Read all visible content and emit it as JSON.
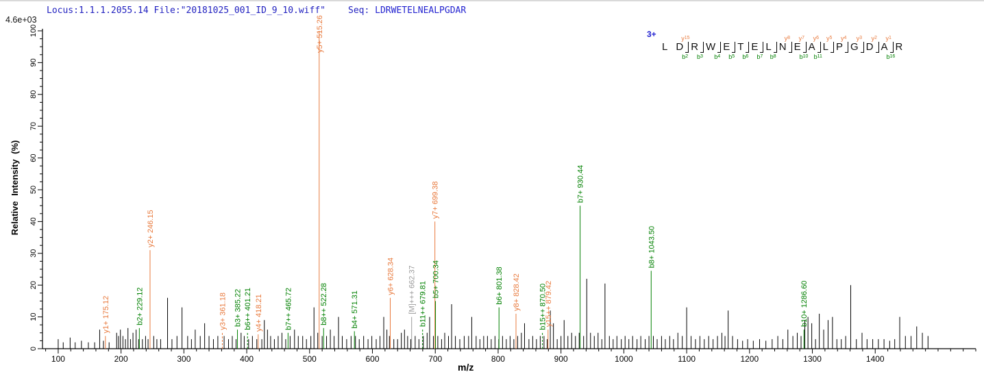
{
  "header": {
    "locus_file": "Locus:1.1.1.2055.14 File:\"20181025_001_ID_9_10.wiff\"",
    "seq_label": "Seq: ",
    "seq_value": "LDRWETELNEALPGDAR",
    "max_intensity": "4.6e+03"
  },
  "peptide": {
    "charge": "3+",
    "residues": [
      "L",
      "D",
      "R",
      "W",
      "E",
      "T",
      "E",
      "L",
      "N",
      "E",
      "A",
      "L",
      "P",
      "G",
      "D",
      "A",
      "R"
    ],
    "gaps": [
      {
        "after": 2,
        "y": "y15",
        "b": "b2"
      },
      {
        "after": 3,
        "b": "b3"
      },
      {
        "after": 4,
        "b": "b4"
      },
      {
        "after": 5,
        "b": "b5"
      },
      {
        "after": 6,
        "b": "b6"
      },
      {
        "after": 7,
        "b": "b7"
      },
      {
        "after": 8,
        "b": "b8"
      },
      {
        "after": 9,
        "y": "y8"
      },
      {
        "after": 10,
        "y": "y7",
        "b": "b10"
      },
      {
        "after": 11,
        "y": "y6",
        "b": "b11"
      },
      {
        "after": 12,
        "y": "y5"
      },
      {
        "after": 13,
        "y": "y4"
      },
      {
        "after": 14,
        "y": "y3"
      },
      {
        "after": 15,
        "y": "y2"
      },
      {
        "after": 16,
        "y": "y1",
        "b": "b16"
      }
    ]
  },
  "colors": {
    "y_ion": "#e8793c",
    "b_ion": "#008000",
    "precursor": "#999999",
    "peak": "#000000",
    "header_blue": "#2222c0"
  },
  "chart_data": {
    "type": "bar",
    "subtype": "ms2-fragmentation-spectrum",
    "xlabel": "m/z",
    "ylabel": "Relative  Intensity (%)",
    "y_axis_absolute_max": "4.6e+03",
    "x_range": [
      75,
      1560
    ],
    "y_range": [
      0,
      100
    ],
    "x_ticks": [
      100,
      200,
      300,
      400,
      500,
      600,
      700,
      800,
      900,
      1000,
      1100,
      1200,
      1300,
      1400
    ],
    "x_minor_tick_step": 20,
    "y_tick_step": 10,
    "y_minor_tick_step": 2.5,
    "grid": false,
    "labeled_peaks": [
      {
        "ion": "y1+",
        "mz": 175.12,
        "pct": 4,
        "type": "y"
      },
      {
        "ion": "b2+",
        "mz": 229.12,
        "pct": 6.5,
        "type": "b"
      },
      {
        "ion": "y2+",
        "mz": 246.15,
        "pct": 31,
        "type": "y"
      },
      {
        "ion": "y3+",
        "mz": 361.18,
        "pct": 5,
        "type": "y",
        "dashed": true
      },
      {
        "ion": "b3+",
        "mz": 385.22,
        "pct": 6,
        "type": "b"
      },
      {
        "ion": "b6++",
        "mz": 401.21,
        "pct": 5,
        "type": "b",
        "dashed": true
      },
      {
        "ion": "y4+",
        "mz": 418.21,
        "pct": 4.5,
        "type": "y"
      },
      {
        "ion": "b7++",
        "mz": 465.72,
        "pct": 5,
        "type": "b"
      },
      {
        "ion": "y5+",
        "mz": 515.26,
        "pct": 100,
        "type": "y",
        "label_dy": 36
      },
      {
        "ion": "b8++",
        "mz": 522.28,
        "pct": 6.5,
        "type": "b"
      },
      {
        "ion": "b4+",
        "mz": 571.31,
        "pct": 5.5,
        "type": "b"
      },
      {
        "ion": "y6+",
        "mz": 628.34,
        "pct": 16,
        "type": "y"
      },
      {
        "ion": "[M]+++",
        "mz": 662.37,
        "pct": 10,
        "type": "precursor"
      },
      {
        "ion": "b11++",
        "mz": 679.81,
        "pct": 6,
        "type": "b",
        "dashed": true
      },
      {
        "ion": "y7+",
        "mz": 699.38,
        "pct": 40,
        "type": "y"
      },
      {
        "ion": "b5+",
        "mz": 700.34,
        "pct": 15,
        "type": "b"
      },
      {
        "ion": "b6+",
        "mz": 801.38,
        "pct": 13,
        "type": "b"
      },
      {
        "ion": "y8+",
        "mz": 828.42,
        "pct": 11,
        "type": "y"
      },
      {
        "ion": "b15++",
        "mz": 870.5,
        "pct": 5,
        "type": "b",
        "dashed": true
      },
      {
        "ion": "y15++",
        "mz": 879.42,
        "pct": 6,
        "type": "y"
      },
      {
        "ion": "b7+",
        "mz": 930.44,
        "pct": 45,
        "type": "b"
      },
      {
        "ion": "b8+",
        "mz": 1043.5,
        "pct": 24.5,
        "type": "b"
      },
      {
        "ion": "b10+",
        "mz": 1286.6,
        "pct": 6,
        "type": "b"
      }
    ],
    "unlabeled_peaks": [
      [
        100,
        3
      ],
      [
        108,
        2
      ],
      [
        119,
        3.5
      ],
      [
        127,
        2
      ],
      [
        137,
        2.5
      ],
      [
        148,
        2
      ],
      [
        158,
        2
      ],
      [
        166,
        6
      ],
      [
        172,
        2.5
      ],
      [
        181,
        2
      ],
      [
        193,
        5
      ],
      [
        196,
        4
      ],
      [
        199,
        6
      ],
      [
        203,
        4
      ],
      [
        207,
        3
      ],
      [
        211,
        6.5
      ],
      [
        215,
        3
      ],
      [
        219,
        5
      ],
      [
        224,
        6
      ],
      [
        228,
        3
      ],
      [
        234,
        3
      ],
      [
        239,
        4
      ],
      [
        243,
        3
      ],
      [
        252,
        4
      ],
      [
        257,
        3
      ],
      [
        263,
        3
      ],
      [
        274,
        16
      ],
      [
        281,
        3
      ],
      [
        289,
        4
      ],
      [
        297,
        13
      ],
      [
        306,
        4
      ],
      [
        312,
        3
      ],
      [
        318,
        6
      ],
      [
        326,
        4
      ],
      [
        333,
        8
      ],
      [
        340,
        4
      ],
      [
        347,
        3
      ],
      [
        354,
        4
      ],
      [
        364,
        4
      ],
      [
        371,
        3
      ],
      [
        377,
        4
      ],
      [
        383,
        3
      ],
      [
        391,
        5
      ],
      [
        396,
        4
      ],
      [
        403,
        3
      ],
      [
        409,
        4
      ],
      [
        416,
        3
      ],
      [
        424,
        3
      ],
      [
        428,
        9
      ],
      [
        433,
        6
      ],
      [
        438,
        4
      ],
      [
        444,
        3
      ],
      [
        450,
        4
      ],
      [
        456,
        5
      ],
      [
        462,
        3
      ],
      [
        469,
        4
      ],
      [
        476,
        6
      ],
      [
        482,
        4
      ],
      [
        489,
        4
      ],
      [
        495,
        3
      ],
      [
        502,
        4
      ],
      [
        507,
        13
      ],
      [
        513,
        5
      ],
      [
        520,
        4
      ],
      [
        527,
        4
      ],
      [
        533,
        6
      ],
      [
        539,
        4
      ],
      [
        546,
        10
      ],
      [
        552,
        4
      ],
      [
        559,
        3
      ],
      [
        566,
        4
      ],
      [
        573,
        4
      ],
      [
        579,
        3
      ],
      [
        586,
        4
      ],
      [
        593,
        3
      ],
      [
        599,
        4
      ],
      [
        606,
        3
      ],
      [
        612,
        4
      ],
      [
        618,
        10
      ],
      [
        623,
        6
      ],
      [
        627,
        4
      ],
      [
        634,
        3
      ],
      [
        640,
        3
      ],
      [
        646,
        5
      ],
      [
        651,
        6
      ],
      [
        656,
        4
      ],
      [
        661,
        3
      ],
      [
        668,
        4
      ],
      [
        674,
        3
      ],
      [
        681,
        4
      ],
      [
        687,
        5
      ],
      [
        691,
        10
      ],
      [
        697,
        4
      ],
      [
        704,
        4
      ],
      [
        710,
        3
      ],
      [
        715,
        5
      ],
      [
        721,
        4
      ],
      [
        726,
        14
      ],
      [
        732,
        4
      ],
      [
        739,
        3
      ],
      [
        746,
        4
      ],
      [
        753,
        4
      ],
      [
        758,
        10
      ],
      [
        765,
        4
      ],
      [
        771,
        3
      ],
      [
        777,
        4
      ],
      [
        783,
        4
      ],
      [
        789,
        3
      ],
      [
        795,
        4
      ],
      [
        801,
        3
      ],
      [
        807,
        4
      ],
      [
        813,
        3
      ],
      [
        819,
        4
      ],
      [
        825,
        3
      ],
      [
        831,
        4
      ],
      [
        837,
        5
      ],
      [
        842,
        8
      ],
      [
        849,
        3
      ],
      [
        855,
        4
      ],
      [
        861,
        3
      ],
      [
        867,
        4
      ],
      [
        873,
        4
      ],
      [
        878,
        3
      ],
      [
        883,
        12
      ],
      [
        888,
        8
      ],
      [
        894,
        3
      ],
      [
        900,
        4
      ],
      [
        905,
        9
      ],
      [
        911,
        4
      ],
      [
        917,
        5
      ],
      [
        923,
        4
      ],
      [
        929,
        5
      ],
      [
        936,
        4
      ],
      [
        941,
        22
      ],
      [
        947,
        5
      ],
      [
        953,
        4
      ],
      [
        959,
        5
      ],
      [
        965,
        3
      ],
      [
        970,
        20.5
      ],
      [
        977,
        4
      ],
      [
        983,
        3
      ],
      [
        989,
        4
      ],
      [
        996,
        3
      ],
      [
        1002,
        4
      ],
      [
        1008,
        3
      ],
      [
        1014,
        4
      ],
      [
        1021,
        3
      ],
      [
        1027,
        4
      ],
      [
        1034,
        3
      ],
      [
        1040,
        4
      ],
      [
        1047,
        4
      ],
      [
        1053,
        3
      ],
      [
        1060,
        4
      ],
      [
        1066,
        3
      ],
      [
        1073,
        4
      ],
      [
        1079,
        3
      ],
      [
        1086,
        5
      ],
      [
        1093,
        4
      ],
      [
        1100,
        13
      ],
      [
        1107,
        4
      ],
      [
        1114,
        3
      ],
      [
        1121,
        4
      ],
      [
        1128,
        3
      ],
      [
        1135,
        4
      ],
      [
        1142,
        3
      ],
      [
        1149,
        4
      ],
      [
        1156,
        5
      ],
      [
        1161,
        4
      ],
      [
        1166,
        12
      ],
      [
        1173,
        4
      ],
      [
        1181,
        3
      ],
      [
        1189,
        2.5
      ],
      [
        1197,
        3
      ],
      [
        1206,
        2.5
      ],
      [
        1216,
        3
      ],
      [
        1226,
        2.5
      ],
      [
        1236,
        3
      ],
      [
        1245,
        4
      ],
      [
        1253,
        3
      ],
      [
        1261,
        6
      ],
      [
        1269,
        4
      ],
      [
        1276,
        5
      ],
      [
        1282,
        4
      ],
      [
        1288,
        9
      ],
      [
        1293,
        10
      ],
      [
        1299,
        8
      ],
      [
        1305,
        3
      ],
      [
        1311,
        11
      ],
      [
        1318,
        6
      ],
      [
        1325,
        9
      ],
      [
        1332,
        10
      ],
      [
        1339,
        3
      ],
      [
        1346,
        3
      ],
      [
        1353,
        4
      ],
      [
        1361,
        20
      ],
      [
        1370,
        3
      ],
      [
        1379,
        5
      ],
      [
        1387,
        3
      ],
      [
        1396,
        3
      ],
      [
        1405,
        3
      ],
      [
        1414,
        3
      ],
      [
        1423,
        2.5
      ],
      [
        1431,
        3
      ],
      [
        1439,
        10
      ],
      [
        1448,
        4
      ],
      [
        1457,
        4
      ],
      [
        1466,
        7
      ],
      [
        1475,
        5
      ],
      [
        1484,
        4
      ]
    ]
  }
}
